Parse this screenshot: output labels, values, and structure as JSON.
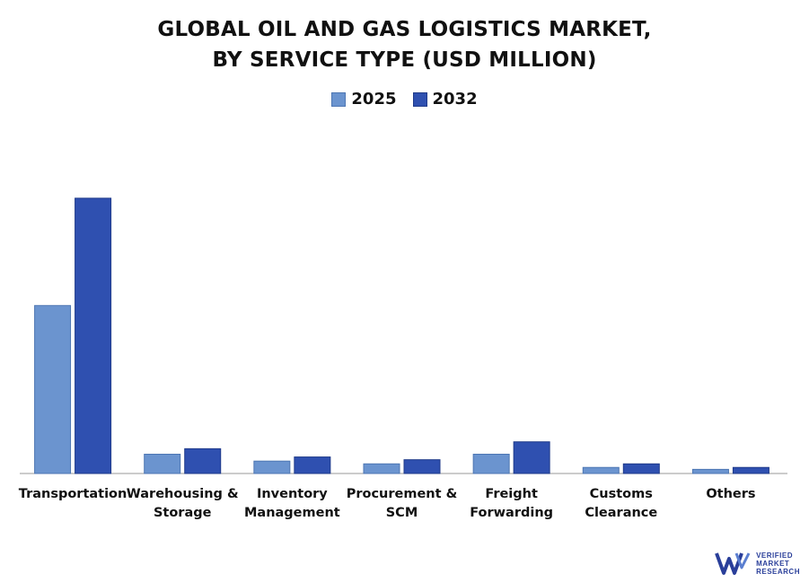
{
  "header": {
    "title_line1": "GLOBAL OIL AND GAS LOGISTICS MARKET,",
    "title_line2": "BY SERVICE TYPE (USD MILLION)"
  },
  "colors": {
    "series_2025": "#6b94cf",
    "series_2032": "#2f50b0",
    "axis": "#999999"
  },
  "chart_data": {
    "type": "bar",
    "title": "GLOBAL OIL AND GAS LOGISTICS MARKET, BY SERVICE TYPE (USD MILLION)",
    "legend_position": "top-center",
    "grid": false,
    "categories": [
      [
        "Transportation"
      ],
      [
        "Warehousing &",
        "Storage"
      ],
      [
        "Inventory",
        "Management"
      ],
      [
        "Procurement &",
        "SCM"
      ],
      [
        "Freight",
        "Forwarding"
      ],
      [
        "Customs",
        "Clearance"
      ],
      [
        "Others"
      ]
    ],
    "ylim": [
      0,
      100
    ],
    "series": [
      {
        "name": "2025",
        "values": [
          61,
          7,
          4.5,
          3.5,
          7,
          2.2,
          1.5
        ]
      },
      {
        "name": "2032",
        "values": [
          100,
          9,
          6,
          5,
          11.5,
          3.5,
          2.2
        ]
      }
    ]
  },
  "logo": {
    "icon": "vmr-logo-icon",
    "line1": "VERIFIED",
    "line2": "MARKET",
    "line3": "RESEARCH"
  }
}
